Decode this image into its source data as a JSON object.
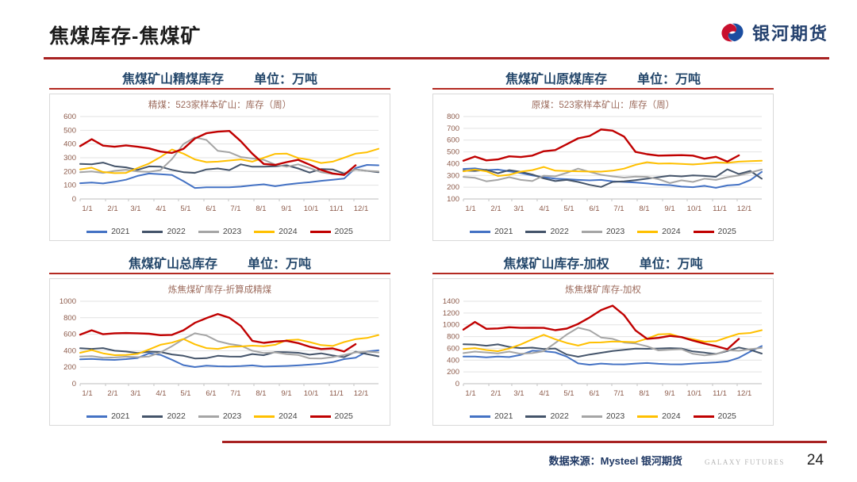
{
  "page": {
    "title": "焦煤库存-焦煤矿",
    "logo_text": "银河期货",
    "footer_source": "数据来源：Mysteel 银河期货",
    "footer_brand": "GALAXY FUTURES",
    "page_number": "24",
    "accent_red": "#A82222",
    "header_blue": "#24476b"
  },
  "panels": [
    {
      "title": "焦煤矿山精煤库存",
      "unit": "单位：万吨"
    },
    {
      "title": "焦煤矿山原煤库存",
      "unit": "单位：万吨"
    },
    {
      "title": "焦煤矿山总库存",
      "unit": "单位：万吨"
    },
    {
      "title": "焦煤矿山库存-加权",
      "unit": "单位：万吨"
    }
  ],
  "chart_data": [
    {
      "type": "line",
      "title": "精煤：523家样本矿山：库存（周）",
      "ylabel": "万吨",
      "ylim": [
        0,
        600
      ],
      "ystep": 100,
      "grid": true,
      "legend_position": "bottom",
      "x_ticks": [
        "1/1",
        "2/1",
        "3/1",
        "4/1",
        "5/1",
        "6/1",
        "7/1",
        "8/1",
        "9/1",
        "10/1",
        "11/1",
        "12/1"
      ],
      "slots": 27,
      "series": [
        {
          "name": "2021",
          "color": "#4472C4",
          "values": [
            115,
            120,
            113,
            125,
            140,
            168,
            185,
            180,
            175,
            130,
            80,
            85,
            85,
            85,
            90,
            100,
            107,
            93,
            105,
            115,
            122,
            132,
            140,
            148,
            225,
            248,
            245
          ]
        },
        {
          "name": "2022",
          "color": "#44546A",
          "values": [
            255,
            252,
            265,
            238,
            230,
            212,
            237,
            235,
            212,
            195,
            190,
            215,
            222,
            210,
            252,
            235,
            235,
            238,
            245,
            222,
            192,
            218,
            215,
            185,
            215,
            205,
            195
          ]
        },
        {
          "name": "2023",
          "color": "#A5A5A5",
          "values": [
            195,
            200,
            190,
            205,
            213,
            200,
            198,
            210,
            290,
            400,
            448,
            430,
            350,
            340,
            305,
            295,
            285,
            250,
            235,
            252,
            225,
            195,
            182,
            178,
            215,
            205,
            200
          ]
        },
        {
          "name": "2024",
          "color": "#FFC000",
          "values": [
            215,
            228,
            196,
            188,
            190,
            225,
            258,
            305,
            360,
            330,
            288,
            268,
            272,
            280,
            288,
            272,
            300,
            328,
            330,
            298,
            285,
            262,
            272,
            300,
            330,
            340,
            365
          ]
        },
        {
          "name": "2025",
          "color": "#C00000",
          "values": [
            385,
            435,
            388,
            380,
            390,
            380,
            368,
            345,
            335,
            365,
            440,
            478,
            490,
            495,
            420,
            330,
            255,
            248,
            268,
            285,
            250,
            212,
            186,
            175,
            245
          ]
        }
      ]
    },
    {
      "type": "line",
      "title": "原煤：523家样本矿山：库存（周）",
      "ylabel": "万吨",
      "ylim": [
        100,
        800
      ],
      "ystep": 100,
      "grid": true,
      "legend_position": "bottom",
      "x_ticks": [
        "1/1",
        "2/1",
        "3/1",
        "4/1",
        "5/1",
        "6/1",
        "7/1",
        "8/1",
        "9/1",
        "10/1",
        "11/1",
        "12/1"
      ],
      "slots": 27,
      "series": [
        {
          "name": "2021",
          "color": "#4472C4",
          "values": [
            355,
            360,
            345,
            350,
            335,
            320,
            300,
            285,
            272,
            268,
            262,
            258,
            262,
            250,
            245,
            240,
            232,
            222,
            218,
            205,
            200,
            212,
            195,
            215,
            222,
            260,
            330
          ]
        },
        {
          "name": "2022",
          "color": "#44546A",
          "values": [
            340,
            338,
            348,
            318,
            345,
            330,
            308,
            275,
            252,
            262,
            245,
            220,
            202,
            245,
            250,
            260,
            272,
            285,
            298,
            292,
            300,
            296,
            288,
            352,
            312,
            338,
            272
          ]
        },
        {
          "name": "2023",
          "color": "#A5A5A5",
          "values": [
            288,
            280,
            250,
            262,
            285,
            262,
            252,
            298,
            292,
            322,
            358,
            330,
            305,
            292,
            282,
            290,
            288,
            268,
            235,
            258,
            245,
            272,
            262,
            285,
            300,
            325,
            350
          ]
        },
        {
          "name": "2024",
          "color": "#FFC000",
          "values": [
            335,
            350,
            335,
            295,
            305,
            332,
            345,
            372,
            340,
            337,
            335,
            333,
            332,
            340,
            358,
            390,
            412,
            400,
            402,
            398,
            393,
            400,
            410,
            407,
            417,
            422,
            425
          ]
        },
        {
          "name": "2025",
          "color": "#C00000",
          "values": [
            425,
            460,
            428,
            436,
            462,
            456,
            468,
            505,
            515,
            565,
            615,
            635,
            690,
            680,
            630,
            500,
            480,
            468,
            470,
            472,
            468,
            442,
            458,
            418,
            470
          ]
        }
      ]
    },
    {
      "type": "line",
      "title": "炼焦煤矿库存-折算成精煤",
      "ylabel": "万吨",
      "ylim": [
        0,
        1000
      ],
      "ystep": 200,
      "grid": true,
      "legend_position": "bottom",
      "x_ticks": [
        "1/1",
        "2/1",
        "3/1",
        "4/1",
        "5/1",
        "6/1",
        "7/1",
        "8/1",
        "9/1",
        "10/1",
        "11/1",
        "12/1"
      ],
      "slots": 27,
      "series": [
        {
          "name": "2021",
          "color": "#4472C4",
          "values": [
            295,
            300,
            292,
            288,
            298,
            312,
            368,
            350,
            290,
            225,
            202,
            218,
            212,
            210,
            213,
            222,
            208,
            212,
            215,
            222,
            232,
            242,
            262,
            298,
            315,
            390,
            405
          ]
        },
        {
          "name": "2022",
          "color": "#44546A",
          "values": [
            430,
            422,
            432,
            400,
            390,
            372,
            388,
            385,
            355,
            338,
            306,
            310,
            338,
            330,
            328,
            360,
            345,
            385,
            382,
            375,
            352,
            368,
            342,
            322,
            388,
            360,
            332
          ]
        },
        {
          "name": "2023",
          "color": "#A5A5A5",
          "values": [
            330,
            335,
            315,
            318,
            328,
            322,
            330,
            380,
            455,
            540,
            612,
            585,
            515,
            482,
            462,
            400,
            372,
            380,
            358,
            348,
            308,
            305,
            322,
            348,
            380,
            388,
            380
          ]
        },
        {
          "name": "2024",
          "color": "#FFC000",
          "values": [
            375,
            408,
            368,
            346,
            348,
            362,
            415,
            472,
            498,
            542,
            478,
            432,
            422,
            448,
            452,
            462,
            455,
            472,
            528,
            535,
            505,
            468,
            458,
            505,
            540,
            555,
            590
          ]
        },
        {
          "name": "2025",
          "color": "#C00000",
          "values": [
            595,
            648,
            600,
            612,
            614,
            612,
            606,
            588,
            592,
            648,
            738,
            795,
            845,
            800,
            700,
            520,
            495,
            512,
            520,
            492,
            448,
            420,
            428,
            390,
            480
          ]
        }
      ]
    },
    {
      "type": "line",
      "title": "炼焦煤矿库存-加权",
      "ylabel": "万吨",
      "ylim": [
        0,
        1400
      ],
      "ystep": 200,
      "grid": true,
      "legend_position": "bottom",
      "x_ticks": [
        "1/1",
        "2/1",
        "3/1",
        "4/1",
        "5/1",
        "6/1",
        "7/1",
        "8/1",
        "9/1",
        "10/1",
        "11/1",
        "12/1"
      ],
      "slots": 27,
      "series": [
        {
          "name": "2021",
          "color": "#4472C4",
          "values": [
            460,
            462,
            448,
            462,
            452,
            490,
            560,
            552,
            532,
            460,
            345,
            322,
            342,
            330,
            328,
            342,
            352,
            338,
            330,
            328,
            342,
            352,
            362,
            378,
            440,
            545,
            640
          ]
        },
        {
          "name": "2022",
          "color": "#44546A",
          "values": [
            670,
            665,
            645,
            668,
            625,
            605,
            612,
            588,
            598,
            495,
            458,
            495,
            525,
            555,
            575,
            595,
            592,
            598,
            605,
            598,
            548,
            528,
            505,
            555,
            615,
            575,
            512
          ]
        },
        {
          "name": "2023",
          "color": "#A5A5A5",
          "values": [
            520,
            545,
            530,
            515,
            545,
            508,
            520,
            552,
            690,
            835,
            950,
            905,
            785,
            762,
            698,
            682,
            635,
            565,
            578,
            585,
            508,
            482,
            502,
            568,
            558,
            585,
            608
          ]
        },
        {
          "name": "2024",
          "color": "#FFC000",
          "values": [
            590,
            605,
            572,
            552,
            598,
            668,
            752,
            830,
            755,
            692,
            648,
            698,
            702,
            718,
            712,
            705,
            765,
            838,
            845,
            788,
            755,
            715,
            722,
            788,
            848,
            862,
            908
          ]
        },
        {
          "name": "2025",
          "color": "#C00000",
          "values": [
            920,
            1048,
            932,
            938,
            958,
            948,
            950,
            948,
            908,
            935,
            1015,
            1125,
            1250,
            1325,
            1165,
            905,
            762,
            778,
            812,
            792,
            732,
            682,
            638,
            585,
            760
          ]
        }
      ]
    }
  ]
}
